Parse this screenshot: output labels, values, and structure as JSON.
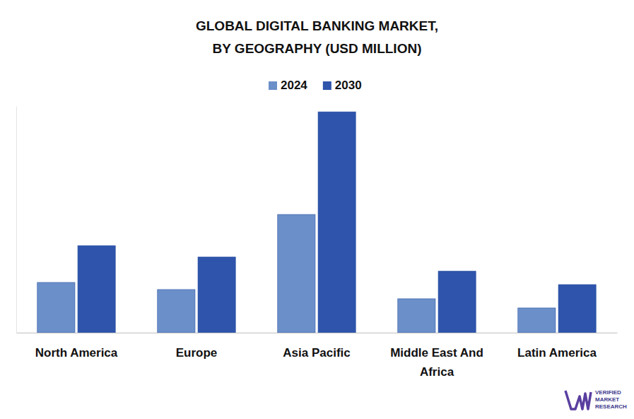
{
  "chart_data": {
    "type": "bar",
    "title": "GLOBAL DIGITAL BANKING MARKET, BY GEOGRAPHY (USD MILLION)",
    "categories": [
      "North America",
      "Europe",
      "Asia Pacific",
      "Middle East And Africa",
      "Latin America"
    ],
    "series": [
      {
        "name": "2024",
        "color": "#6a8fc9",
        "values": [
          71,
          61,
          167,
          48,
          35
        ]
      },
      {
        "name": "2030",
        "color": "#2e54ab",
        "values": [
          123,
          107,
          312,
          87,
          68
        ]
      }
    ],
    "ylim": [
      0,
      320
    ],
    "tick_labels": "x",
    "legend": "top",
    "annotations": [
      "VERIFIED MARKET RESEARCH"
    ]
  }
}
